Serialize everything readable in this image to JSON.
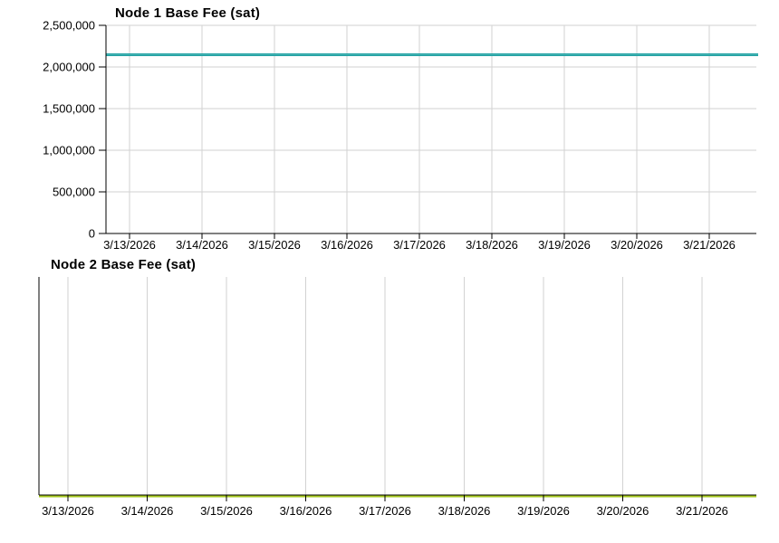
{
  "colors": {
    "background": "#ffffff",
    "axis": "#000000",
    "gridline": "#d2d2d2",
    "tick_label": "#000000",
    "node1_line": "#1d9fa2",
    "node1_line_highlight": "#4ab6b3",
    "node2_line": "#a6c81e"
  },
  "chart_data": [
    {
      "type": "line",
      "title": "Node 1 Base Fee (sat)",
      "xlabel": "",
      "ylabel": "",
      "categories": [
        "3/13/2026",
        "3/14/2026",
        "3/15/2026",
        "3/16/2026",
        "3/17/2026",
        "3/18/2026",
        "3/19/2026",
        "3/20/2026",
        "3/21/2026"
      ],
      "series": [
        {
          "name": "Node 1 Base Fee",
          "color": "#1d9fa2",
          "values": [
            2147483,
            2147483,
            2147483,
            2147483,
            2147483,
            2147483,
            2147483,
            2147483,
            2147483
          ]
        }
      ],
      "ylim": [
        0,
        2500000
      ],
      "yticks": [
        {
          "value": 2500000,
          "label": "2,500,000"
        },
        {
          "value": 2000000,
          "label": "2,000,000"
        },
        {
          "value": 1500000,
          "label": "1,500,000"
        },
        {
          "value": 1000000,
          "label": "1,000,000"
        },
        {
          "value": 500000,
          "label": "500,000"
        },
        {
          "value": 0,
          "label": "0"
        }
      ],
      "grid": {
        "horizontal": true,
        "vertical": true
      },
      "legend": "none",
      "notes": "constant horizontal line spanning full plot width"
    },
    {
      "type": "line",
      "title": "Node 2 Base Fee (sat)",
      "xlabel": "",
      "ylabel": "",
      "categories": [
        "3/13/2026",
        "3/14/2026",
        "3/15/2026",
        "3/16/2026",
        "3/17/2026",
        "3/18/2026",
        "3/19/2026",
        "3/20/2026",
        "3/21/2026"
      ],
      "series": [
        {
          "name": "Node 2 Base Fee",
          "color": "#a6c81e",
          "values": [
            0,
            0,
            0,
            0,
            0,
            0,
            0,
            0,
            0
          ]
        }
      ],
      "ylim": null,
      "yticks": [],
      "grid": {
        "horizontal": false,
        "vertical": true
      },
      "legend": "none",
      "notes": "flat line at zero drawn along the x-axis"
    }
  ]
}
